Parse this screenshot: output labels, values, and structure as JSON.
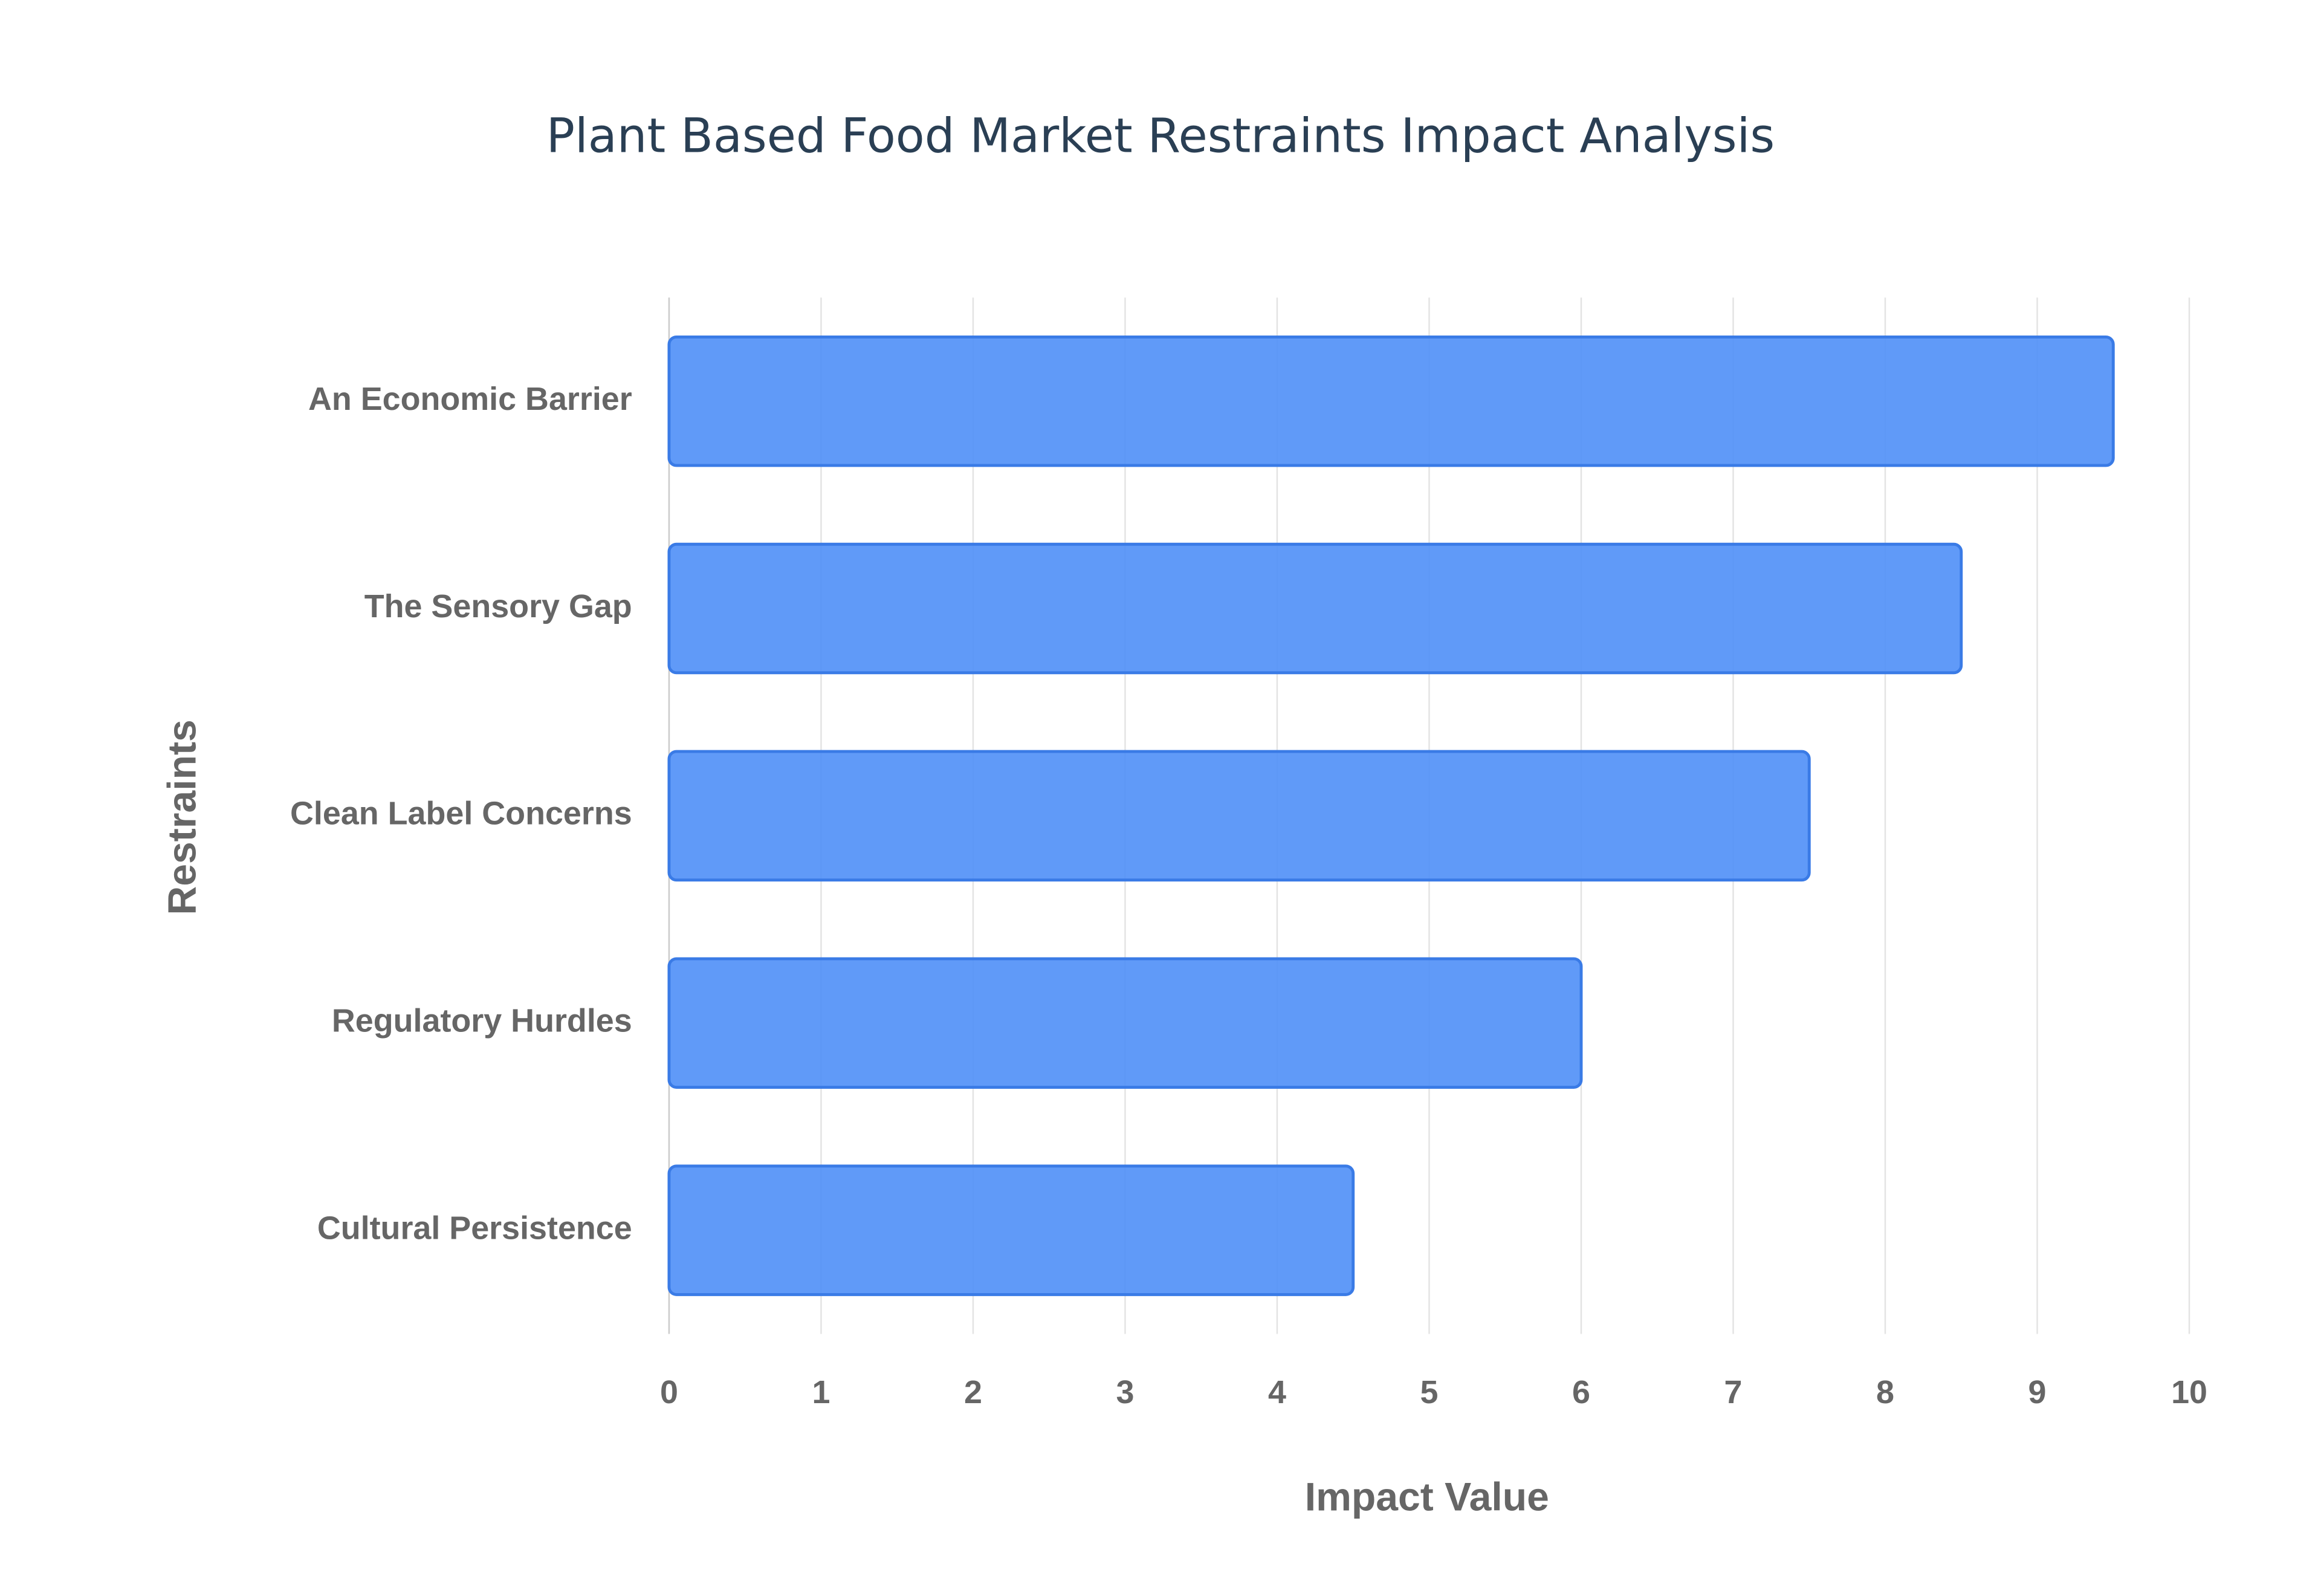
{
  "chart_data": {
    "type": "bar",
    "orientation": "horizontal",
    "title": "Plant Based Food Market Restraints Impact Analysis",
    "x_label": "Impact Value",
    "y_label": "Restraints",
    "categories": [
      "An Economic Barrier",
      "The Sensory Gap",
      "Clean Label Concerns",
      "Regulatory Hurdles",
      "Cultural Persistence"
    ],
    "values": [
      9.5,
      8.5,
      7.5,
      6,
      4.5
    ],
    "color": "#4f8ff7",
    "xlim": [
      0,
      10
    ],
    "xticks": [
      0,
      1,
      2,
      3,
      4,
      5,
      6,
      7,
      8,
      9,
      10
    ],
    "grid": true
  }
}
